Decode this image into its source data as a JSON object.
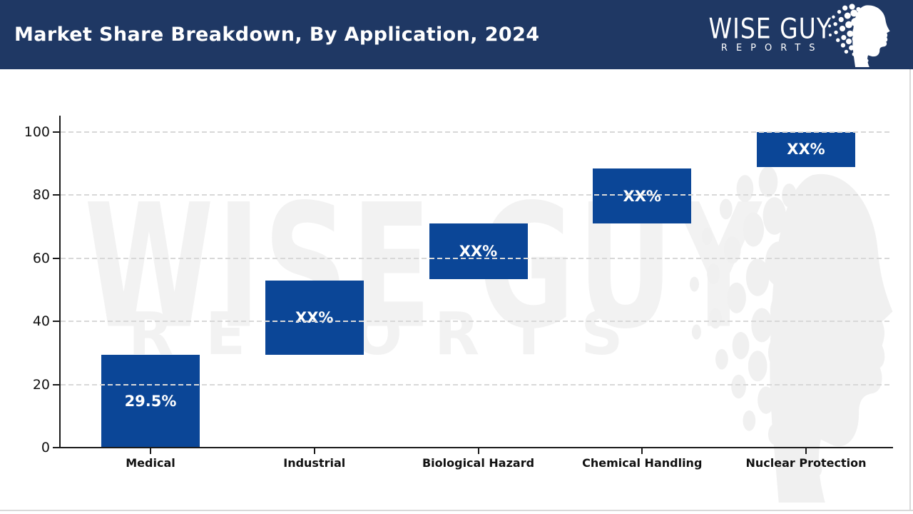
{
  "header": {
    "title": "Market Share Breakdown, By Application, 2024",
    "logo": {
      "brand_line1": "WISE GUY",
      "brand_line2": "REPORTS"
    }
  },
  "watermark": {
    "line1": "WISE GUY",
    "line2": "REPORTS"
  },
  "colors": {
    "header_bg": "#1f3864",
    "header_text": "#ffffff",
    "bar": "#0b4697",
    "bar_label": "#ffffff",
    "grid": "#d8d8d8",
    "axis": "#1a1a1a",
    "watermark": "#f2f2f2"
  },
  "chart_data": {
    "type": "bar",
    "subtype": "waterfall",
    "title": "Market Share Breakdown, By Application, 2024",
    "xlabel": "",
    "ylabel": "",
    "categories": [
      "Medical",
      "Industrial",
      "Biological Hazard",
      "Chemical Handling",
      "Nuclear Protection"
    ],
    "bars": [
      {
        "category": "Medical",
        "start": 0,
        "end": 29.5,
        "label": "29.5%"
      },
      {
        "category": "Industrial",
        "start": 29.5,
        "end": 53,
        "label": "XX%"
      },
      {
        "category": "Biological Hazard",
        "start": 53.5,
        "end": 71,
        "label": "XX%"
      },
      {
        "category": "Chemical Handling",
        "start": 71,
        "end": 88.5,
        "label": "XX%"
      },
      {
        "category": "Nuclear Protection",
        "start": 89,
        "end": 100,
        "label": "XX%"
      }
    ],
    "yticks": [
      0,
      20,
      40,
      60,
      80,
      100
    ],
    "ylim": [
      0,
      105
    ],
    "grid": "horizontal-dashed",
    "legend": null,
    "bar_color": "#0b4697",
    "bar_label_color": "#ffffff"
  }
}
